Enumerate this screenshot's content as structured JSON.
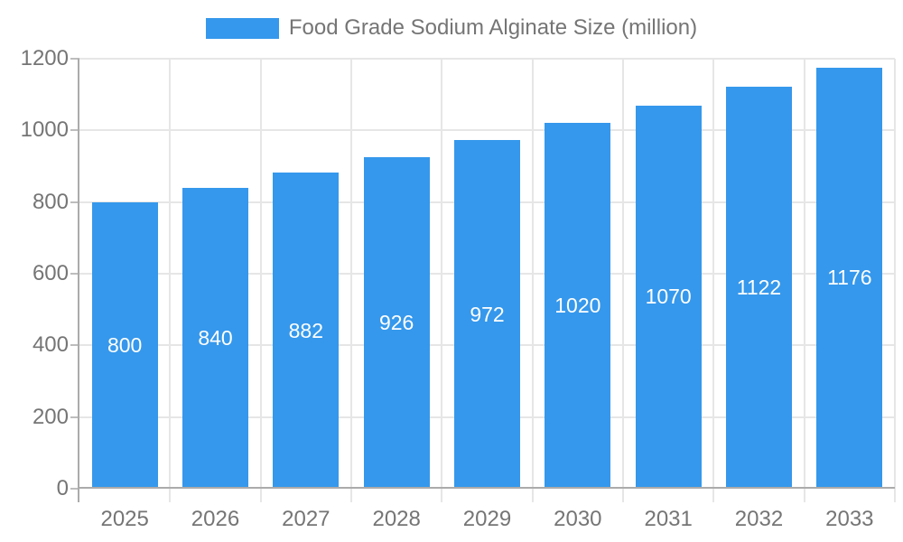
{
  "legend": {
    "label": "Food Grade Sodium Alginate Size (million)"
  },
  "chart_data": {
    "type": "bar",
    "title": "Food Grade Sodium Alginate Size (million)",
    "categories": [
      "2025",
      "2026",
      "2027",
      "2028",
      "2029",
      "2030",
      "2031",
      "2032",
      "2033"
    ],
    "values": [
      800,
      840,
      882,
      926,
      972,
      1020,
      1070,
      1122,
      1176
    ],
    "xlabel": "",
    "ylabel": "",
    "ylim": [
      0,
      1200
    ],
    "yticks": [
      0,
      200,
      400,
      600,
      800,
      1000,
      1200
    ],
    "grid": true,
    "legend_position": "top",
    "bar_color": "#3598ec",
    "value_label_color": "#ffffff",
    "axis_text_color": "#757575",
    "grid_color": "#e6e6e6",
    "axis_line_color": "#ababab",
    "background_color": "#ffffff"
  }
}
